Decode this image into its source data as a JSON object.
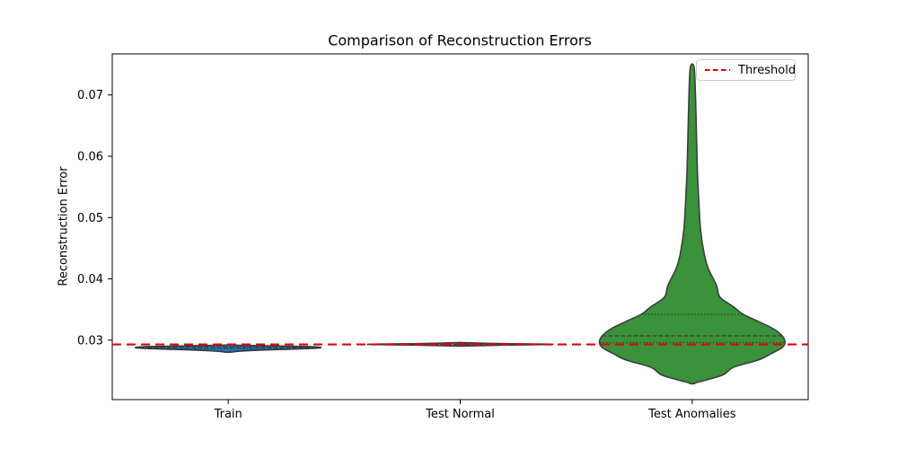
{
  "chart_data": {
    "type": "violin",
    "title": "Comparison of Reconstruction Errors",
    "ylabel": "Reconstruction Error",
    "xlabel": "",
    "categories": [
      "Train",
      "Test Normal",
      "Test Anomalies"
    ],
    "yticks": [
      0.03,
      0.04,
      0.05,
      0.06,
      0.07
    ],
    "ylim": [
      0.0203,
      0.0767
    ],
    "xlim": [
      0.5,
      3.5
    ],
    "grid": false,
    "legend_position": "upper right",
    "frame_color": "#000000",
    "threshold": {
      "label": "Threshold",
      "value": 0.0293,
      "color": "#e60000",
      "style": "dashed"
    },
    "violins": [
      {
        "label": "Train",
        "position": 1,
        "fill": "#1f77b4",
        "edge": "#33373b",
        "max_halfwidth": 0.4,
        "quartiles": {
          "q1": 0.0286,
          "median": 0.0288,
          "q3": 0.029
        },
        "range": [
          0.02805,
          0.0292
        ],
        "profile": [
          [
            0.02805,
            0.03
          ],
          [
            0.0282,
            0.12
          ],
          [
            0.02835,
            0.3
          ],
          [
            0.0285,
            0.6
          ],
          [
            0.02865,
            0.9
          ],
          [
            0.0288,
            1.0
          ],
          [
            0.02895,
            0.85
          ],
          [
            0.0291,
            0.3
          ],
          [
            0.0292,
            0.03
          ]
        ]
      },
      {
        "label": "Test Normal",
        "position": 2,
        "fill": "#9a9a9a",
        "edge": "#3a3a3a",
        "max_halfwidth": 0.4,
        "quartiles": {
          "q1": 0.0292,
          "median": 0.0293,
          "q3": 0.0294
        },
        "range": [
          0.02905,
          0.0296
        ],
        "profile": [
          [
            0.02905,
            0.05
          ],
          [
            0.0292,
            0.5
          ],
          [
            0.02933,
            1.0
          ],
          [
            0.02945,
            0.4
          ],
          [
            0.0296,
            0.02
          ]
        ]
      },
      {
        "label": "Test Anomalies",
        "position": 3,
        "fill": "#3a923a",
        "edge": "#3d3d3d",
        "max_halfwidth": 0.4,
        "quartiles": {
          "q1": 0.0296,
          "median": 0.0307,
          "q3": 0.0342
        },
        "range": [
          0.0229,
          0.0745
        ],
        "profile": [
          [
            0.0229,
            0.02
          ],
          [
            0.0231,
            0.05
          ],
          [
            0.0237,
            0.2
          ],
          [
            0.0244,
            0.34
          ],
          [
            0.0256,
            0.45
          ],
          [
            0.0268,
            0.72
          ],
          [
            0.0278,
            0.85
          ],
          [
            0.0288,
            0.97
          ],
          [
            0.0297,
            1.0
          ],
          [
            0.0307,
            0.97
          ],
          [
            0.0318,
            0.88
          ],
          [
            0.033,
            0.72
          ],
          [
            0.0342,
            0.55
          ],
          [
            0.0355,
            0.44
          ],
          [
            0.037,
            0.3
          ],
          [
            0.039,
            0.26
          ],
          [
            0.0416,
            0.175
          ],
          [
            0.044,
            0.13
          ],
          [
            0.048,
            0.09
          ],
          [
            0.053,
            0.07
          ],
          [
            0.058,
            0.055
          ],
          [
            0.064,
            0.045
          ],
          [
            0.07,
            0.035
          ],
          [
            0.0745,
            0.02
          ]
        ]
      }
    ]
  }
}
